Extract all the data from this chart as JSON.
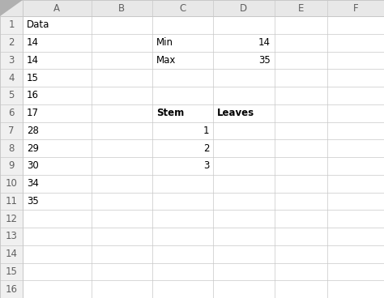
{
  "figsize": [
    4.74,
    3.68
  ],
  "dpi": 100,
  "background_color": "#ffffff",
  "grid_line_color": "#c8c8c8",
  "header_bg_color": "#e8e8e8",
  "row_number_bg": "#f0f0f0",
  "triangle_color": "#b0b0b0",
  "num_rows": 16,
  "col_labels": [
    "A",
    "B",
    "C",
    "D",
    "E",
    "F"
  ],
  "row_labels": [
    "1",
    "2",
    "3",
    "4",
    "5",
    "6",
    "7",
    "8",
    "9",
    "10",
    "11",
    "12",
    "13",
    "14",
    "15",
    "16"
  ],
  "cells": {
    "A1": {
      "text": "Data",
      "bold": false,
      "align": "left",
      "col": 0,
      "row": 0
    },
    "A2": {
      "text": "14",
      "bold": false,
      "align": "left",
      "col": 0,
      "row": 1
    },
    "A3": {
      "text": "14",
      "bold": false,
      "align": "left",
      "col": 0,
      "row": 2
    },
    "A4": {
      "text": "15",
      "bold": false,
      "align": "left",
      "col": 0,
      "row": 3
    },
    "A5": {
      "text": "16",
      "bold": false,
      "align": "left",
      "col": 0,
      "row": 4
    },
    "A6": {
      "text": "17",
      "bold": false,
      "align": "left",
      "col": 0,
      "row": 5
    },
    "A7": {
      "text": "28",
      "bold": false,
      "align": "left",
      "col": 0,
      "row": 6
    },
    "A8": {
      "text": "29",
      "bold": false,
      "align": "left",
      "col": 0,
      "row": 7
    },
    "A9": {
      "text": "30",
      "bold": false,
      "align": "left",
      "col": 0,
      "row": 8
    },
    "A10": {
      "text": "34",
      "bold": false,
      "align": "left",
      "col": 0,
      "row": 9
    },
    "A11": {
      "text": "35",
      "bold": false,
      "align": "left",
      "col": 0,
      "row": 10
    },
    "C2": {
      "text": "Min",
      "bold": false,
      "align": "left",
      "col": 2,
      "row": 1
    },
    "C3": {
      "text": "Max",
      "bold": false,
      "align": "left",
      "col": 2,
      "row": 2
    },
    "C6": {
      "text": "Stem",
      "bold": true,
      "align": "left",
      "col": 2,
      "row": 5
    },
    "D2": {
      "text": "14",
      "bold": false,
      "align": "right",
      "col": 3,
      "row": 1
    },
    "D3": {
      "text": "35",
      "bold": false,
      "align": "right",
      "col": 3,
      "row": 2
    },
    "D6": {
      "text": "Leaves",
      "bold": true,
      "align": "left",
      "col": 3,
      "row": 5
    },
    "C7": {
      "text": "1",
      "bold": false,
      "align": "right",
      "col": 2,
      "row": 6
    },
    "C8": {
      "text": "2",
      "bold": false,
      "align": "right",
      "col": 2,
      "row": 7
    },
    "C9": {
      "text": "3",
      "bold": false,
      "align": "right",
      "col": 2,
      "row": 8
    }
  },
  "header_font_size": 8.5,
  "cell_font_size": 8.5,
  "text_color": "#000000",
  "header_text_color": "#606060"
}
